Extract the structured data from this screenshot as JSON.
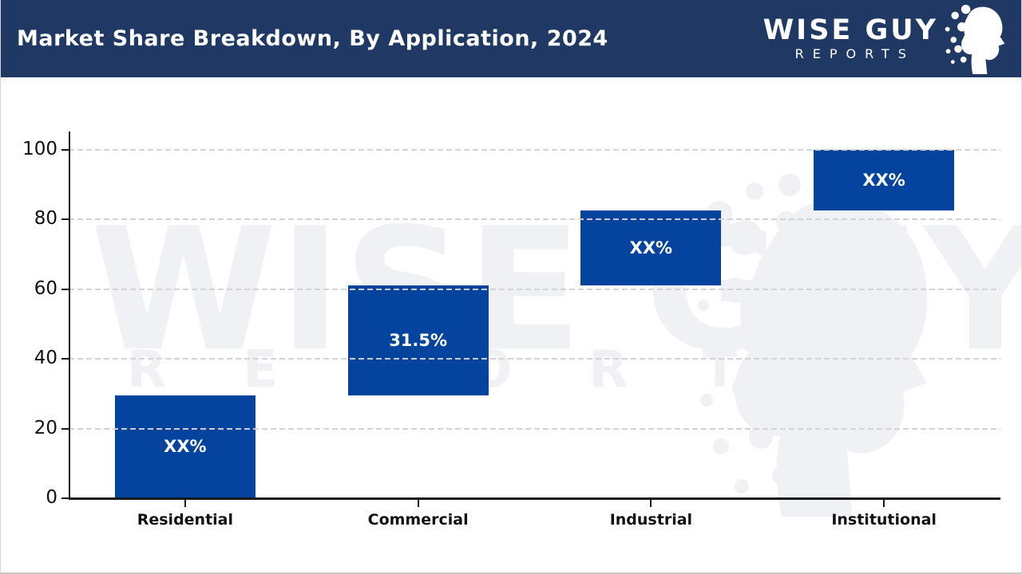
{
  "header": {
    "title": "Market Share Breakdown, By Application, 2024",
    "logo": {
      "line1": "WISE GUY",
      "line2": "REPORTS"
    }
  },
  "watermark": {
    "line1": "WISE GUY",
    "line2": "REPORTS"
  },
  "theme": {
    "navy": "#1f3864",
    "bar_blue": "#05449e",
    "watermark_gray": "#f0f1f4",
    "grid_gray": "#d9d9d9",
    "axis_black": "#1a1a1a"
  },
  "chart_data": {
    "type": "bar",
    "subtype": "waterfall",
    "title": "Market Share Breakdown, By Application, 2024",
    "xlabel": "",
    "ylabel": "",
    "categories": [
      "Residential",
      "Commercial",
      "Industrial",
      "Institutional"
    ],
    "segments": [
      {
        "category": "Residential",
        "start": 0,
        "end": 29.5,
        "label": "XX%"
      },
      {
        "category": "Commercial",
        "start": 29.5,
        "end": 61.0,
        "label": "31.5%"
      },
      {
        "category": "Industrial",
        "start": 61.0,
        "end": 82.5,
        "label": "XX%"
      },
      {
        "category": "Institutional",
        "start": 82.5,
        "end": 100,
        "label": "XX%"
      }
    ],
    "ylim": [
      0,
      100
    ],
    "yticks": [
      0,
      20,
      40,
      60,
      80,
      100
    ],
    "grid": "horizontal-dashed",
    "legend": "none"
  }
}
